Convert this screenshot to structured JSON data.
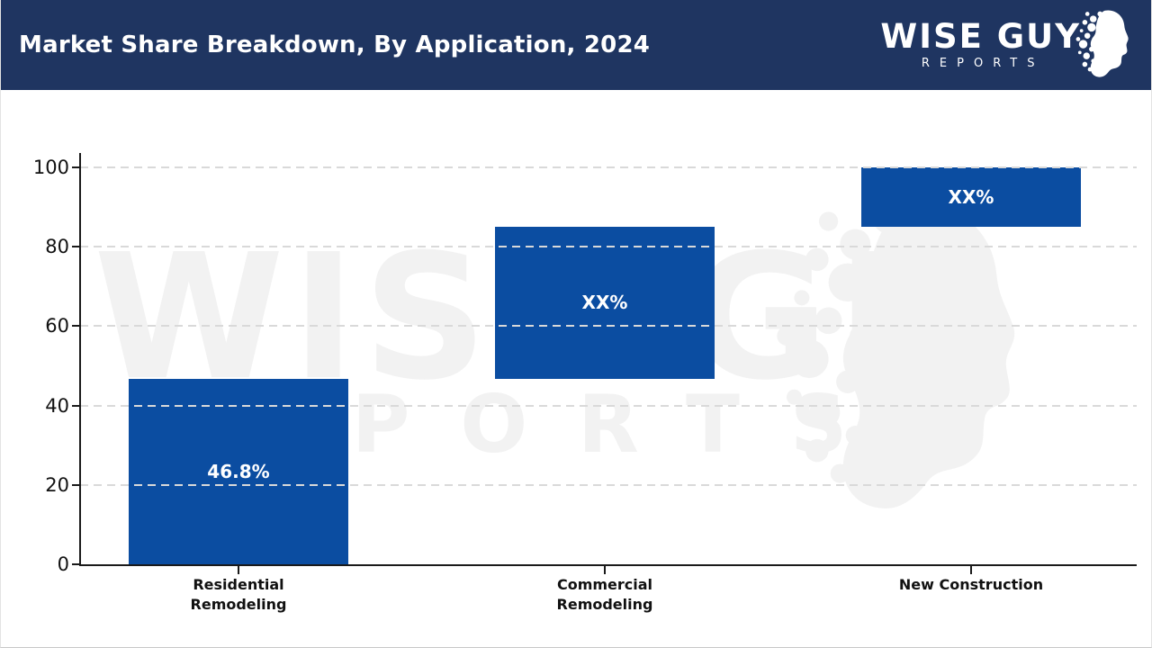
{
  "header": {
    "title": "Market Share Breakdown, By Application, 2024",
    "bg_color": "#1f3561",
    "logo": {
      "line1": "WISE GUY",
      "line2": "REPORTS"
    }
  },
  "watermark": {
    "line1": "WISE GU",
    "line2": "REPORTS"
  },
  "chart_data": {
    "type": "bar",
    "subtype": "stacked-waterfall-segments",
    "title": "Market Share Breakdown, By Application, 2024",
    "categories": [
      "Residential\nRemodeling",
      "Commercial\nRemodeling",
      "New Construction"
    ],
    "segments": [
      {
        "category": "Residential Remodeling",
        "start": 0,
        "end": 46.8,
        "label": "46.8%"
      },
      {
        "category": "Commercial Remodeling",
        "start": 46.8,
        "end": 85.0,
        "label": "XX%"
      },
      {
        "category": "New Construction",
        "start": 85.0,
        "end": 100.0,
        "label": "XX%"
      }
    ],
    "xlabel": "",
    "ylabel": "",
    "ylim": [
      0,
      100
    ],
    "yticks": [
      0,
      20,
      40,
      60,
      80,
      100
    ],
    "grid": "horizontal-dashed",
    "legend": "none",
    "bar_color": "#0b4da1",
    "value_label_color": "#ffffff"
  }
}
